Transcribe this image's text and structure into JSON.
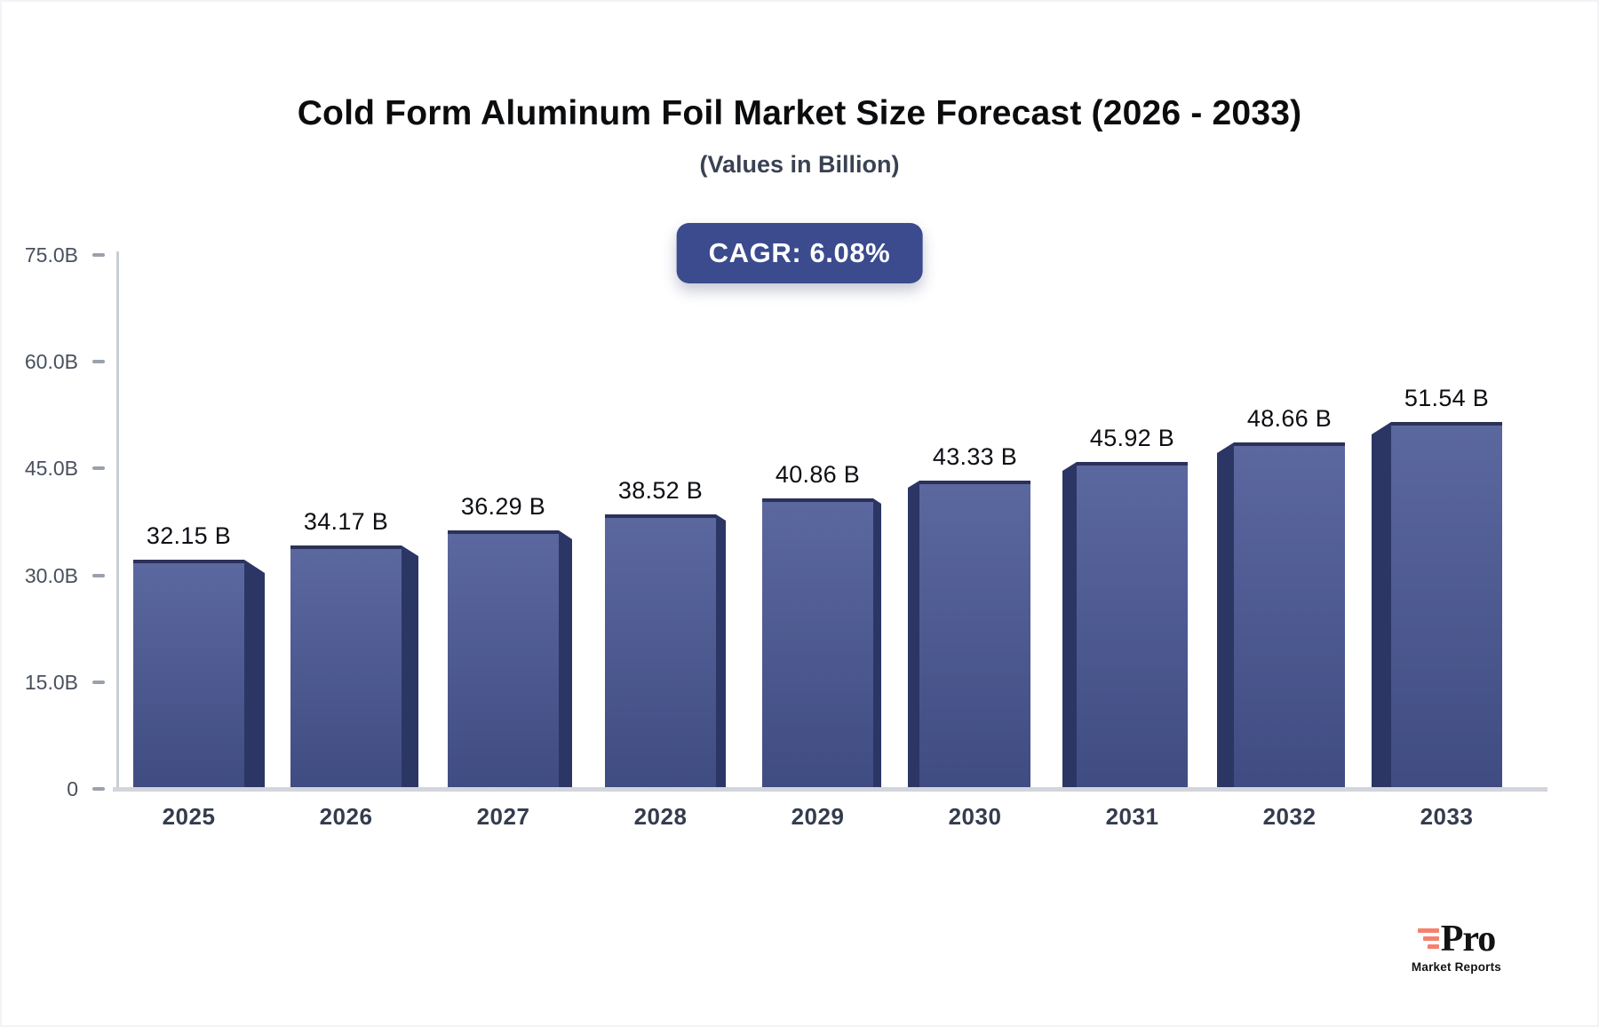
{
  "header": {
    "title": "Cold Form Aluminum Foil Market Size Forecast (2026 - 2033)",
    "subtitle": "(Values in Billion)",
    "cagr_badge": "CAGR: 6.08%",
    "badge_color": "#3b4b8e"
  },
  "chart_data": {
    "type": "bar",
    "title": "Cold Form Aluminum Foil Market Size Forecast (2026 - 2033)",
    "subtitle": "(Values in Billion)",
    "cagr": "6.08%",
    "categories": [
      "2025",
      "2026",
      "2027",
      "2028",
      "2029",
      "2030",
      "2031",
      "2032",
      "2033"
    ],
    "values": [
      32.15,
      34.17,
      36.29,
      38.52,
      40.86,
      43.33,
      45.92,
      48.66,
      51.54
    ],
    "value_labels": [
      "32.15 B",
      "34.17 B",
      "36.29 B",
      "38.52 B",
      "40.86 B",
      "43.33 B",
      "45.92 B",
      "48.66 B",
      "51.54 B"
    ],
    "xlabel": "",
    "ylabel": "",
    "ylim": [
      0,
      75
    ],
    "yticks": [
      {
        "value": 75,
        "label": "75.0B"
      },
      {
        "value": 60,
        "label": "60.0B"
      },
      {
        "value": 45,
        "label": "45.0B"
      },
      {
        "value": 30,
        "label": "30.0B"
      },
      {
        "value": 15,
        "label": "15.0B"
      },
      {
        "value": 0,
        "label": "0"
      }
    ],
    "grid": false,
    "legend": false,
    "bar_style": {
      "face_top": "#5b689f",
      "face_bottom": "#3f4c82",
      "side": "#2c3665",
      "top_edge": "#2b3158"
    }
  },
  "logo": {
    "brand": "Pro",
    "tagline": "Market Reports",
    "accent_color": "#f5806f"
  }
}
